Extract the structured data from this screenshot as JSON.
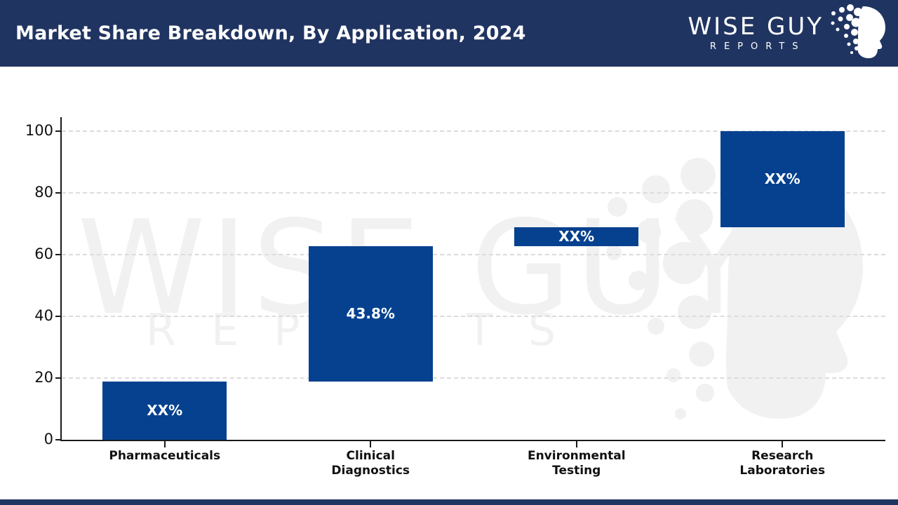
{
  "header": {
    "title": "Market Share Breakdown, By Application, 2024",
    "logo": {
      "line1": "WISE GUY",
      "line2": "REPORTS"
    }
  },
  "watermark": {
    "line1": "WISE GUY",
    "line2": "REPORTS"
  },
  "colors": {
    "header_bg": "#203461",
    "footer_bg": "#203461",
    "bar": "#05418f",
    "bar_label": "#ffffff",
    "grid": "#dcdcdc",
    "axis": "#1a1a1a",
    "tick_text": "#111111",
    "watermark": "#f1f1f1"
  },
  "chart_data": {
    "type": "bar",
    "subtype": "waterfall",
    "title": "Market Share Breakdown, By Application, 2024",
    "categories": [
      "Pharmaceuticals",
      "Clinical Diagnostics",
      "Environmental Testing",
      "Research Laboratories"
    ],
    "category_lines": [
      [
        "Pharmaceuticals"
      ],
      [
        "Clinical",
        "Diagnostics"
      ],
      [
        "Environmental",
        "Testing"
      ],
      [
        "Research",
        "Laboratories"
      ]
    ],
    "segments": [
      {
        "category": "Pharmaceuticals",
        "start": 0,
        "end": 18.9,
        "value_label": "XX%"
      },
      {
        "category": "Clinical Diagnostics",
        "start": 18.9,
        "end": 62.7,
        "value_label": "43.8%"
      },
      {
        "category": "Environmental Testing",
        "start": 62.7,
        "end": 68.9,
        "value_label": "XX%"
      },
      {
        "category": "Research Laboratories",
        "start": 68.9,
        "end": 100,
        "value_label": "XX%"
      }
    ],
    "ylim": [
      0,
      100
    ],
    "yticks": [
      0,
      20,
      40,
      60,
      80,
      100
    ],
    "xlabel": "",
    "ylabel": "",
    "grid": "horizontal-dashed",
    "legend_position": "none"
  }
}
